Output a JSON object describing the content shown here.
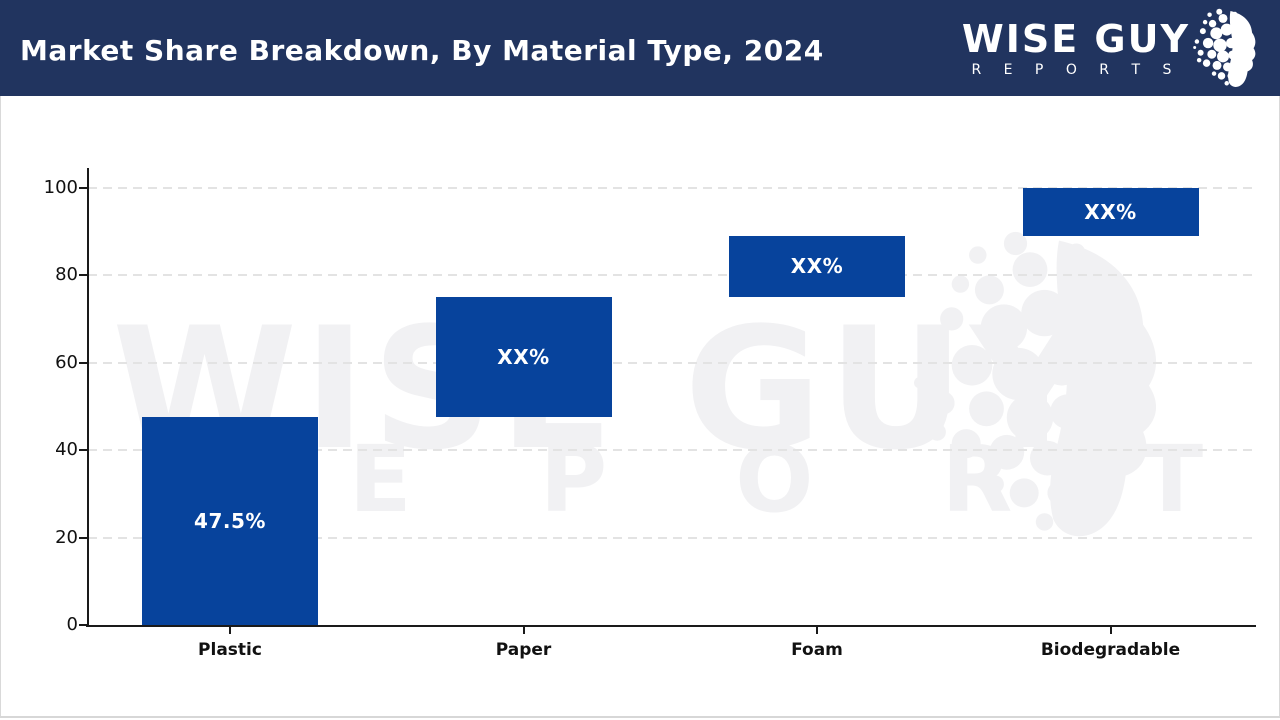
{
  "header": {
    "title": "Market Share Breakdown, By Material Type, 2024",
    "logo": {
      "line1": "WISE GUY",
      "line2": "R E P O R T S",
      "head_icon": "dotted-head-profile"
    }
  },
  "watermark": {
    "line1": "WISE GUY",
    "line2": "R E P O R T S",
    "head_icon": "dotted-head-profile"
  },
  "colors": {
    "header_bg": "#21345f",
    "bar": "#07439c",
    "grid": "#e3e3e3",
    "axis": "#1a1a1a",
    "bar_label": "#ffffff",
    "watermark": "#f1f1f3",
    "border": "#d7d7d7"
  },
  "chart_data": {
    "type": "bar",
    "subtype": "waterfall",
    "title": "Market Share Breakdown, By Material Type, 2024",
    "categories": [
      "Plastic",
      "Paper",
      "Foam",
      "Biodegradable"
    ],
    "segments": [
      {
        "category": "Plastic",
        "start": 0,
        "end": 47.5,
        "label": "47.5%"
      },
      {
        "category": "Paper",
        "start": 47.5,
        "end": 75,
        "label": "XX%"
      },
      {
        "category": "Foam",
        "start": 75,
        "end": 89,
        "label": "XX%"
      },
      {
        "category": "Biodegradable",
        "start": 89,
        "end": 100,
        "label": "XX%"
      }
    ],
    "xlabel": "",
    "ylabel": "",
    "ylim": [
      0,
      105
    ],
    "yticks": [
      0,
      20,
      40,
      60,
      80,
      100
    ],
    "grid": "horizontal-dashed",
    "legend_position": "none"
  }
}
